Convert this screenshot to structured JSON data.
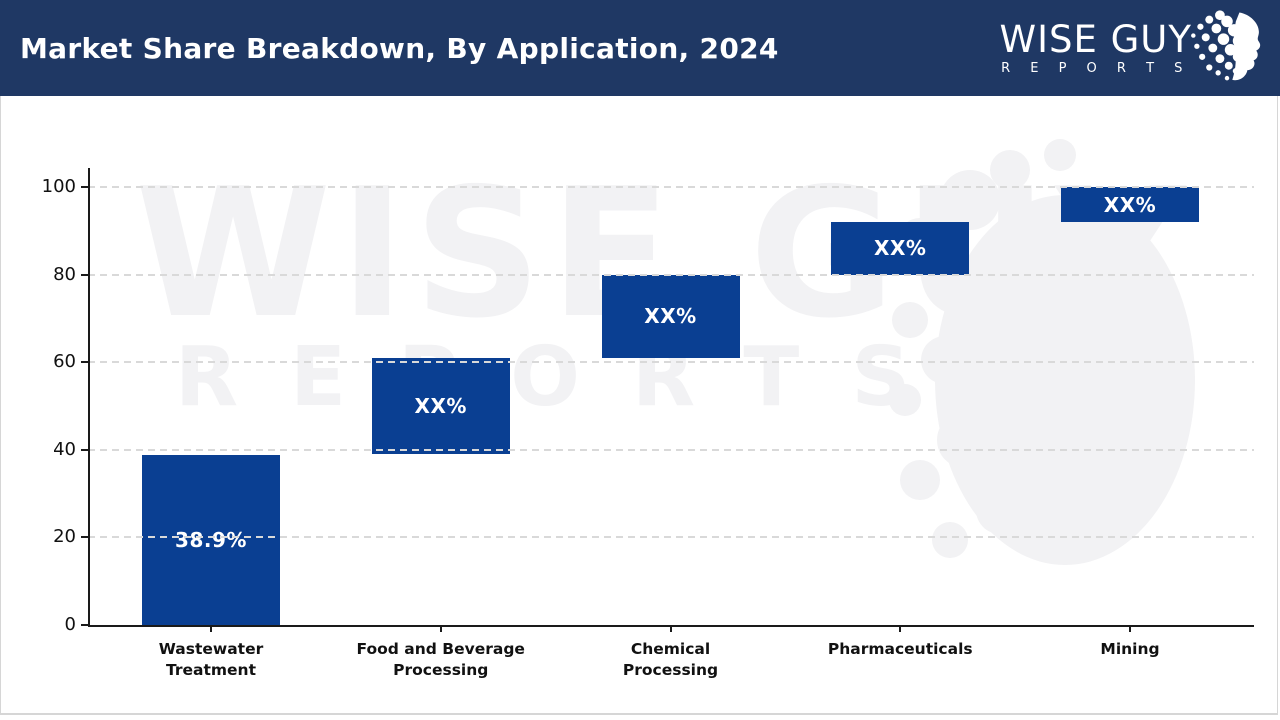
{
  "header": {
    "title": "Market Share Breakdown, By Application, 2024",
    "logo": {
      "line1": "WISE GUY",
      "line2": "R E P O R T S"
    }
  },
  "watermark": {
    "line1": "WISE GUY",
    "line2": "REPORTS"
  },
  "chart_data": {
    "type": "bar",
    "subtype": "waterfall",
    "title": "Market Share Breakdown, By Application, 2024",
    "categories": [
      [
        "Wastewater",
        "Treatment"
      ],
      [
        "Food and Beverage",
        "Processing"
      ],
      [
        "Chemical",
        "Processing"
      ],
      [
        "Pharmaceuticals"
      ],
      [
        "Mining"
      ]
    ],
    "segments": [
      {
        "category": "Wastewater Treatment",
        "start": 0,
        "end": 38.9,
        "label": "38.9%"
      },
      {
        "category": "Food and Beverage Processing",
        "start": 39,
        "end": 61,
        "label": "XX%"
      },
      {
        "category": "Chemical Processing",
        "start": 61,
        "end": 80,
        "label": "XX%"
      },
      {
        "category": "Pharmaceuticals",
        "start": 80,
        "end": 92,
        "label": "XX%"
      },
      {
        "category": "Mining",
        "start": 92,
        "end": 100,
        "label": "XX%"
      }
    ],
    "xlabel": "",
    "ylabel": "",
    "yticks": [
      0,
      20,
      40,
      60,
      80,
      100
    ],
    "ylim": [
      0,
      104
    ],
    "grid": "horizontal-dashed",
    "legend": "none"
  },
  "colors": {
    "header_bg": "#1f3864",
    "bar": "#0a3f92",
    "gridline": "#d9d9d9",
    "axis": "#1a1a1a",
    "bar_label": "#ffffff",
    "watermark": "#f2f2f4"
  }
}
